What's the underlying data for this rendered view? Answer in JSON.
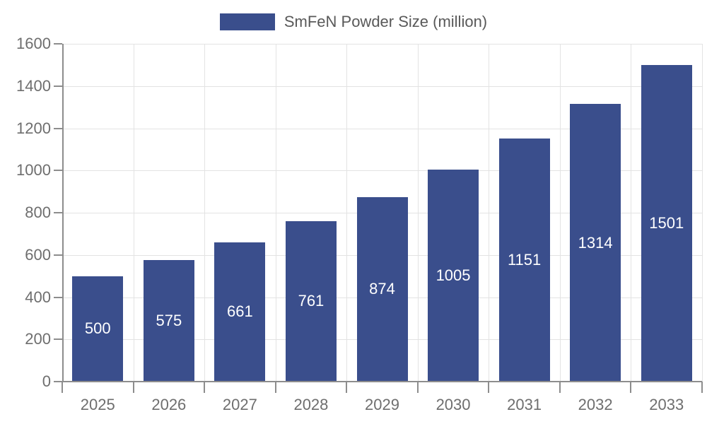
{
  "legend": {
    "label": "SmFeN Powder Size (million)"
  },
  "chart_data": {
    "type": "bar",
    "title": "SmFeN Powder Size (million)",
    "categories": [
      "2025",
      "2026",
      "2027",
      "2028",
      "2029",
      "2030",
      "2031",
      "2032",
      "2033"
    ],
    "values": [
      500,
      575,
      661,
      761,
      874,
      1005,
      1151,
      1314,
      1501
    ],
    "xlabel": "",
    "ylabel": "",
    "ylim": [
      0,
      1600
    ],
    "y_ticks": [
      0,
      200,
      400,
      600,
      800,
      1000,
      1200,
      1400,
      1600
    ],
    "legend_position": "top-center",
    "grid": true,
    "value_labels_inside_bars": true,
    "colors": {
      "bar": "#3A4E8C",
      "value_label": "#ffffff",
      "gridline": "#e3e3e3",
      "axis": "#8d8d8d",
      "tick_label": "#6e6e6e",
      "legend_text": "#595959",
      "background": "#ffffff"
    }
  }
}
